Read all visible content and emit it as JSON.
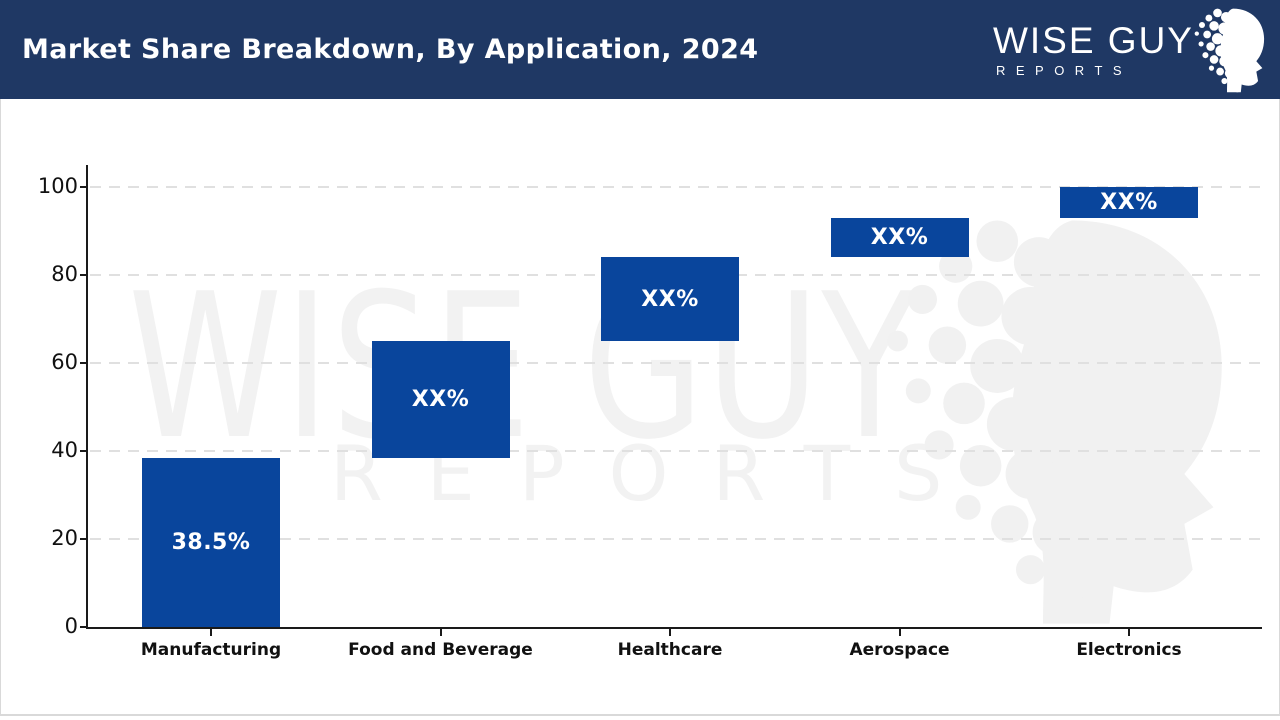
{
  "header": {
    "title": "Market Share Breakdown, By Application, 2024",
    "logo": {
      "wordmark": "WISE GUY",
      "subtitle": "REPORTS"
    }
  },
  "watermark": {
    "wordmark": "WISE GUY",
    "subtitle": "REPORTS"
  },
  "chart_data": {
    "type": "bar",
    "subtype": "floating-segment-waterfall",
    "title": "Market Share Breakdown, By Application, 2024",
    "categories": [
      "Manufacturing",
      "Food and Beverage",
      "Healthcare",
      "Aerospace",
      "Electronics"
    ],
    "bars": [
      {
        "category": "Manufacturing",
        "start": 0,
        "end": 38.5,
        "label": "38.5%"
      },
      {
        "category": "Food and Beverage",
        "start": 38.5,
        "end": 65,
        "label": "XX%"
      },
      {
        "category": "Healthcare",
        "start": 65,
        "end": 84,
        "label": "XX%"
      },
      {
        "category": "Aerospace",
        "start": 84,
        "end": 93,
        "label": "XX%"
      },
      {
        "category": "Electronics",
        "start": 93,
        "end": 100,
        "label": "XX%"
      }
    ],
    "yticks": [
      0,
      20,
      40,
      60,
      80,
      100
    ],
    "ylim": [
      0,
      105
    ],
    "xlabel": "",
    "ylabel": "",
    "grid": "horizontal-dashed",
    "legend": "none",
    "bar_color": "#09459c",
    "bar_label_color": "#ffffff",
    "axis_color": "#1a1a1a",
    "grid_color": "#e0e0e0",
    "header_color": "#1f3864"
  }
}
